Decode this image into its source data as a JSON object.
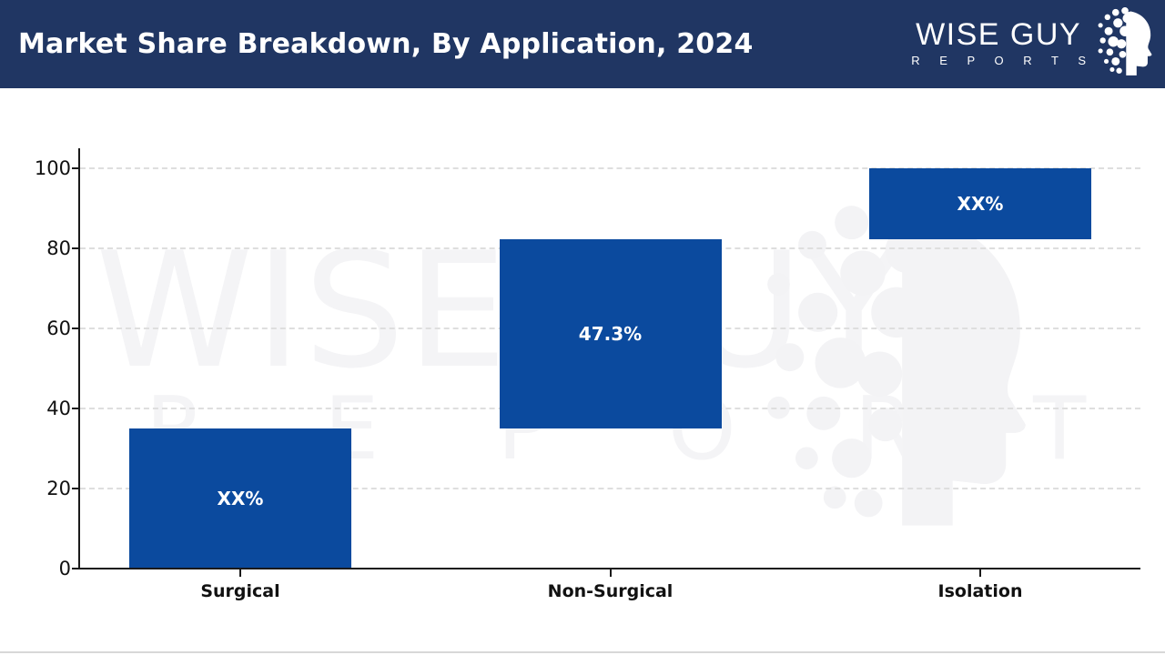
{
  "header": {
    "title": "Market Share Breakdown, By Application, 2024",
    "bg_color": "#203663",
    "logo": {
      "line1": "WISE GUY",
      "line2": "R E P O R T S"
    }
  },
  "watermark": {
    "line1": "WISE GUY",
    "line2": "R E P O R T S"
  },
  "chart_data": {
    "type": "bar",
    "subtype": "waterfall",
    "title": "Market Share Breakdown, By Application, 2024",
    "categories": [
      "Surgical",
      "Non-Surgical",
      "Isolation"
    ],
    "segments": [
      {
        "category": "Surgical",
        "start": 0,
        "end": 35,
        "value": 35,
        "label": "XX%"
      },
      {
        "category": "Non-Surgical",
        "start": 35,
        "end": 82.3,
        "value": 47.3,
        "label": "47.3%"
      },
      {
        "category": "Isolation",
        "start": 82.3,
        "end": 100,
        "value": 17.7,
        "label": "XX%"
      }
    ],
    "yticks": [
      0,
      20,
      40,
      60,
      80,
      100
    ],
    "ylim": [
      0,
      105
    ],
    "xlabel": "",
    "ylabel": "",
    "grid": "horizontal-dashed",
    "legend": "none",
    "bar_color": "#0b4a9e",
    "bar_label_color": "#ffffff"
  }
}
